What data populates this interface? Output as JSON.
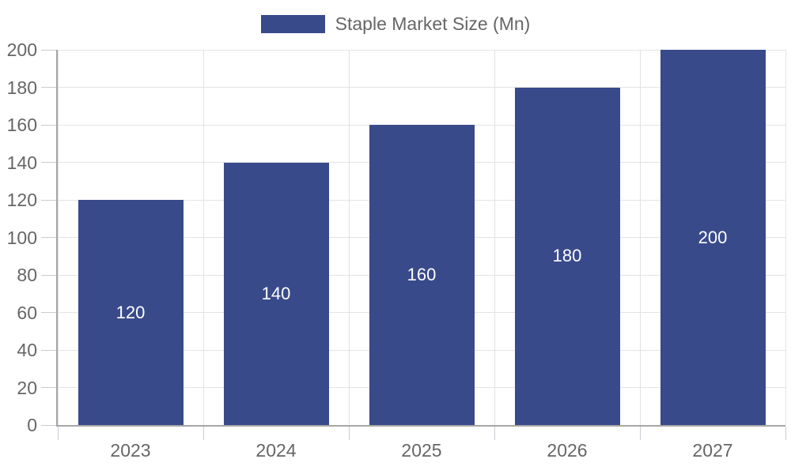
{
  "legend": {
    "label": "Staple Market Size (Mn)"
  },
  "chart_data": {
    "type": "bar",
    "title": "",
    "categories": [
      "2023",
      "2024",
      "2025",
      "2026",
      "2027"
    ],
    "series": [
      {
        "name": "Staple Market Size (Mn)",
        "values": [
          120,
          140,
          160,
          180,
          200
        ],
        "color": "#394a8b"
      }
    ],
    "data_labels": [
      "120",
      "140",
      "160",
      "180",
      "200"
    ],
    "xlabel": "",
    "ylabel": "",
    "ylim": [
      0,
      200
    ],
    "yticks": [
      0,
      20,
      40,
      60,
      80,
      100,
      120,
      140,
      160,
      180,
      200
    ],
    "grid": true,
    "legend_position": "top-center",
    "colors": {
      "bar": "#394a8b",
      "axis_line": "#a6a6a6",
      "gridline": "#e3e3e3",
      "tick": "#c9cbd3",
      "axis_label_text": "#666666",
      "data_label_text": "#ffffff",
      "background": "#ffffff"
    }
  }
}
